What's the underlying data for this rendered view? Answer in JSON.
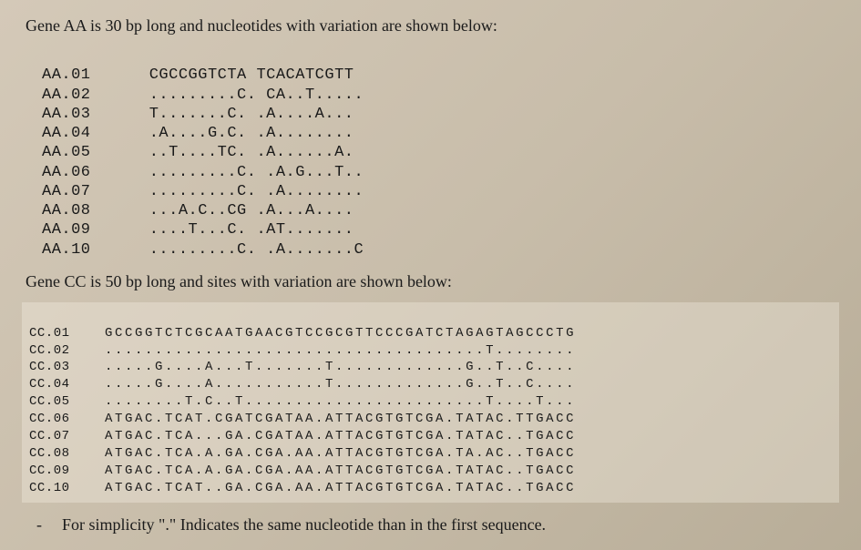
{
  "geneAA": {
    "intro": "Gene AA is 30 bp long and nucleotides with variation are shown below:",
    "rows": [
      {
        "label": "AA.01",
        "seq": "CGCCGGTCTA TCACATCGTT"
      },
      {
        "label": "AA.02",
        "seq": ".........C. CA..T....."
      },
      {
        "label": "AA.03",
        "seq": "T.......C. .A....A..."
      },
      {
        "label": "AA.04",
        "seq": ".A....G.C. .A........"
      },
      {
        "label": "AA.05",
        "seq": "..T....TC. .A......A."
      },
      {
        "label": "AA.06",
        "seq": ".........C. .A.G...T.."
      },
      {
        "label": "AA.07",
        "seq": ".........C. .A........"
      },
      {
        "label": "AA.08",
        "seq": "...A.C..CG .A...A...."
      },
      {
        "label": "AA.09",
        "seq": "....T...C. .AT......."
      },
      {
        "label": "AA.10",
        "seq": ".........C. .A.......C"
      }
    ]
  },
  "geneCC": {
    "intro": "Gene CC is 50 bp long and sites with variation are shown below:",
    "rows": [
      {
        "label": "CC.01",
        "seq": "GCCGGTCTCGCAATGAACGTCCGCGTTCCCGATCTAGAGTAGCCCTG"
      },
      {
        "label": "CC.02",
        "seq": "......................................T........"
      },
      {
        "label": "CC.03",
        "seq": ".....G....A...T.......T.............G..T..C...."
      },
      {
        "label": "CC.04",
        "seq": ".....G....A...........T.............G..T..C...."
      },
      {
        "label": "CC.05",
        "seq": "........T.C..T........................T....T..."
      },
      {
        "label": "CC.06",
        "seq": "ATGAC.TCAT.CGATCGATAA.ATTACGTGTCGA.TATAC.TTGACC"
      },
      {
        "label": "CC.07",
        "seq": "ATGAC.TCA...GA.CGATAA.ATTACGTGTCGA.TATAC..TGACC"
      },
      {
        "label": "CC.08",
        "seq": "ATGAC.TCA.A.GA.CGA.AA.ATTACGTGTCGA.TA.AC..TGACC"
      },
      {
        "label": "CC.09",
        "seq": "ATGAC.TCA.A.GA.CGA.AA.ATTACGTGTCGA.TATAC..TGACC"
      },
      {
        "label": "CC.10",
        "seq": "ATGAC.TCAT..GA.CGA.AA.ATTACGTGTCGA.TATAC..TGACC"
      }
    ]
  },
  "footnote": "For simplicity \".\" Indicates the same nucleotide than in the first sequence.",
  "colors": {
    "bg_start": "#d4c9b8",
    "bg_end": "#b8ad98",
    "text": "#1a1a1a"
  },
  "font": {
    "body_family": "Georgia, Times New Roman, serif",
    "mono_family": "Courier New, monospace",
    "intro_size_pt": 14,
    "seqAA_size_pt": 13,
    "seqCC_size_pt": 10
  }
}
